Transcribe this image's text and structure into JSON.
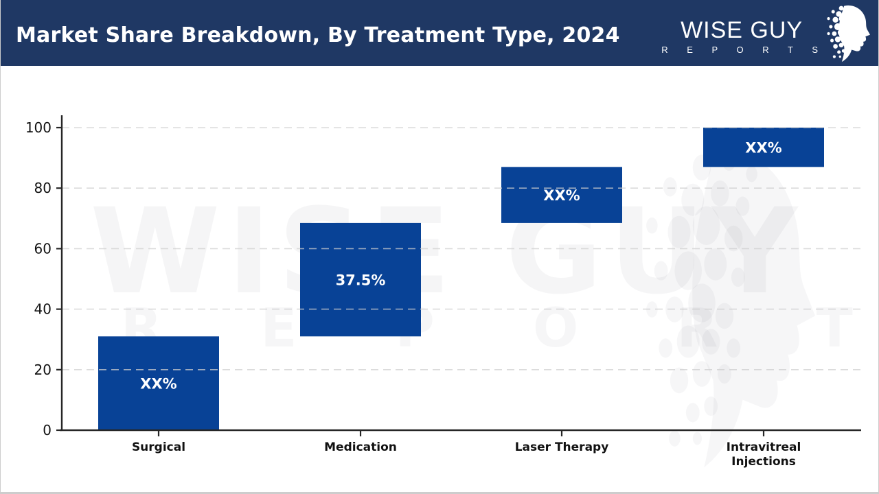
{
  "page": {
    "background": "#ffffff",
    "border_color": "#cdcdcd"
  },
  "header": {
    "background": "#1f3864",
    "title": "Market Share Breakdown, By Treatment Type, 2024",
    "logo": {
      "line1": "WISE GUY",
      "line2": "R E P O R T S"
    }
  },
  "watermark": {
    "line1": "WISE GUY",
    "line2": "R E P O R T S"
  },
  "chart_data": {
    "type": "bar",
    "subtype": "floating-segment-breakdown (waterfall-style market share)",
    "title": "Market Share Breakdown, By Treatment Type, 2024",
    "categories": [
      "Surgical",
      "Medication",
      "Laser Therapy",
      "Intravitreal\nInjections"
    ],
    "segments": [
      {
        "category": "Surgical",
        "start": 0,
        "end": 31,
        "height_pct": 31,
        "label": "XX%"
      },
      {
        "category": "Medication",
        "start": 31,
        "end": 68.5,
        "height_pct": 37.5,
        "label": "37.5%"
      },
      {
        "category": "Laser Therapy",
        "start": 68.5,
        "end": 87,
        "height_pct": 18.5,
        "label": "XX%"
      },
      {
        "category": "Intravitreal Injections",
        "start": 87,
        "end": 100,
        "height_pct": 13,
        "label": "XX%"
      }
    ],
    "yticks": [
      0,
      20,
      40,
      60,
      80,
      100
    ],
    "ylim": [
      0,
      100
    ],
    "xlabel": "",
    "ylabel": "",
    "legend": "none",
    "grid": "horizontal dashed, drawn over bars",
    "bar_color": "#084296",
    "bar_label_color": "#ffffff",
    "axis_color": "#262626",
    "grid_color": "#cfcfcf",
    "tick_label_color": "#111111"
  }
}
